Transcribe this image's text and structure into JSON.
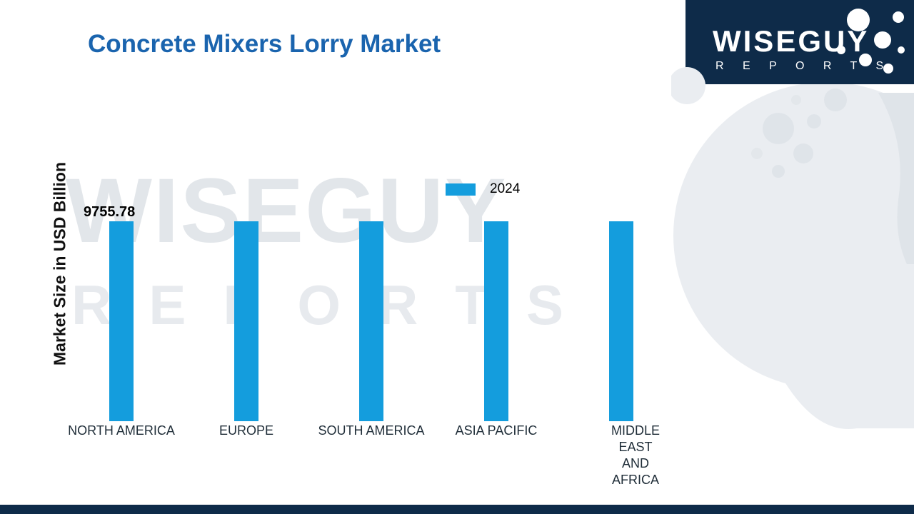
{
  "title": "Concrete Mixers Lorry Market",
  "logo": {
    "brand": "WISEGUY",
    "sub": "R E P O R T S"
  },
  "watermark": {
    "line1": "WISEGUY",
    "line2": "REPORTS"
  },
  "colors": {
    "accent": "#149ddd",
    "navy": "#0e2b49",
    "title_blue": "#1a64ae"
  },
  "chart_data": {
    "type": "bar",
    "title": "Concrete Mixers Lorry Market",
    "xlabel": "",
    "ylabel": "Market Size in USD Billion",
    "categories": [
      "NORTH AMERICA",
      "EUROPE",
      "SOUTH AMERICA",
      "ASIA PACIFIC",
      "MIDDLE EAST AND AFRICA"
    ],
    "series": [
      {
        "name": "2024",
        "values": [
          9755.78,
          9755.78,
          9755.78,
          9755.78,
          9755.78
        ]
      }
    ],
    "value_labels": [
      "9755.78",
      "",
      "",
      "",
      ""
    ],
    "legend": {
      "position": "top",
      "entries": [
        "2024"
      ]
    },
    "grid": false,
    "bar_color": "#149ddd"
  }
}
